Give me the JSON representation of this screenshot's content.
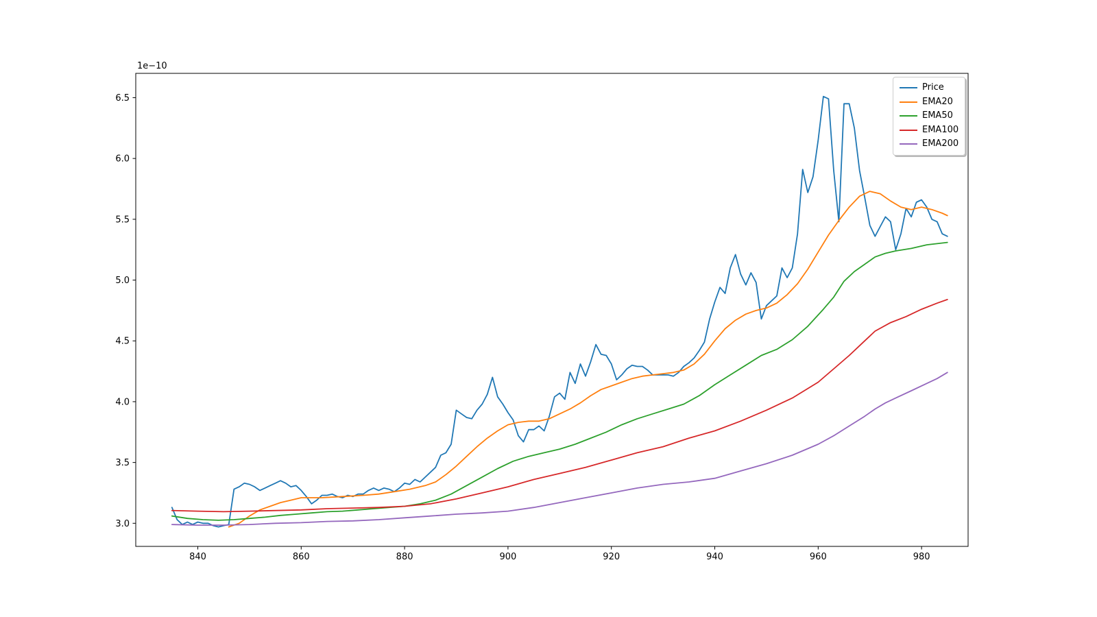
{
  "chart_data": {
    "type": "line",
    "title": "",
    "xlabel": "",
    "ylabel": "",
    "offset_label": "1e−10",
    "xlim": [
      828,
      989
    ],
    "ylim": [
      2.81,
      6.7
    ],
    "grid": false,
    "legend_position": "upper-right",
    "xticks": [
      {
        "v": 840,
        "label": "840"
      },
      {
        "v": 860,
        "label": "860"
      },
      {
        "v": 880,
        "label": "880"
      },
      {
        "v": 900,
        "label": "900"
      },
      {
        "v": 920,
        "label": "920"
      },
      {
        "v": 940,
        "label": "940"
      },
      {
        "v": 960,
        "label": "960"
      },
      {
        "v": 980,
        "label": "980"
      }
    ],
    "yticks": [
      {
        "v": 3.0,
        "label": "3.0"
      },
      {
        "v": 3.5,
        "label": "3.5"
      },
      {
        "v": 4.0,
        "label": "4.0"
      },
      {
        "v": 4.5,
        "label": "4.5"
      },
      {
        "v": 5.0,
        "label": "5.0"
      },
      {
        "v": 5.5,
        "label": "5.5"
      },
      {
        "v": 6.0,
        "label": "6.0"
      },
      {
        "v": 6.5,
        "label": "6.5"
      }
    ],
    "series": [
      {
        "name": "Price",
        "color": "#1f77b4",
        "x_start": 835,
        "x_step": 1,
        "y": [
          3.13,
          3.03,
          2.99,
          3.01,
          2.99,
          3.01,
          3.0,
          3.0,
          2.98,
          2.97,
          2.98,
          2.99,
          3.28,
          3.3,
          3.33,
          3.32,
          3.3,
          3.27,
          3.29,
          3.31,
          3.33,
          3.35,
          3.33,
          3.3,
          3.31,
          3.27,
          3.22,
          3.16,
          3.19,
          3.23,
          3.23,
          3.24,
          3.22,
          3.21,
          3.23,
          3.22,
          3.24,
          3.24,
          3.27,
          3.29,
          3.27,
          3.29,
          3.28,
          3.26,
          3.29,
          3.33,
          3.32,
          3.36,
          3.34,
          3.38,
          3.42,
          3.46,
          3.56,
          3.58,
          3.65,
          3.93,
          3.9,
          3.87,
          3.86,
          3.93,
          3.98,
          4.06,
          4.2,
          4.04,
          3.98,
          3.91,
          3.85,
          3.72,
          3.67,
          3.77,
          3.77,
          3.8,
          3.76,
          3.88,
          4.04,
          4.07,
          4.02,
          4.24,
          4.15,
          4.31,
          4.21,
          4.33,
          4.47,
          4.39,
          4.38,
          4.31,
          4.18,
          4.22,
          4.27,
          4.3,
          4.29,
          4.29,
          4.26,
          4.22,
          4.22,
          4.22,
          4.22,
          4.21,
          4.24,
          4.29,
          4.32,
          4.36,
          4.42,
          4.49,
          4.68,
          4.82,
          4.94,
          4.89,
          5.1,
          5.21,
          5.05,
          4.96,
          5.06,
          4.98,
          4.68,
          4.79,
          4.83,
          4.87,
          5.1,
          5.02,
          5.1,
          5.38,
          5.91,
          5.72,
          5.85,
          6.15,
          6.51,
          6.49,
          5.9,
          5.48,
          6.45,
          6.45,
          6.25,
          5.9,
          5.68,
          5.45,
          5.36,
          5.44,
          5.52,
          5.48,
          5.25,
          5.38,
          5.59,
          5.52,
          5.64,
          5.66,
          5.6,
          5.5,
          5.48,
          5.38,
          5.36
        ]
      },
      {
        "name": "EMA20",
        "color": "#ff7f0e",
        "points": [
          [
            846,
            2.97
          ],
          [
            848,
            3.0
          ],
          [
            850,
            3.06
          ],
          [
            852,
            3.11
          ],
          [
            854,
            3.14
          ],
          [
            856,
            3.17
          ],
          [
            858,
            3.19
          ],
          [
            860,
            3.21
          ],
          [
            864,
            3.21
          ],
          [
            868,
            3.22
          ],
          [
            872,
            3.23
          ],
          [
            875,
            3.24
          ],
          [
            878,
            3.26
          ],
          [
            881,
            3.28
          ],
          [
            884,
            3.31
          ],
          [
            886,
            3.34
          ],
          [
            888,
            3.4
          ],
          [
            890,
            3.47
          ],
          [
            892,
            3.55
          ],
          [
            894,
            3.63
          ],
          [
            896,
            3.7
          ],
          [
            898,
            3.76
          ],
          [
            900,
            3.81
          ],
          [
            902,
            3.83
          ],
          [
            904,
            3.84
          ],
          [
            906,
            3.84
          ],
          [
            908,
            3.86
          ],
          [
            910,
            3.9
          ],
          [
            912,
            3.94
          ],
          [
            914,
            3.99
          ],
          [
            916,
            4.05
          ],
          [
            918,
            4.1
          ],
          [
            920,
            4.13
          ],
          [
            922,
            4.16
          ],
          [
            924,
            4.19
          ],
          [
            926,
            4.21
          ],
          [
            928,
            4.22
          ],
          [
            930,
            4.23
          ],
          [
            932,
            4.24
          ],
          [
            934,
            4.26
          ],
          [
            936,
            4.31
          ],
          [
            938,
            4.39
          ],
          [
            940,
            4.5
          ],
          [
            942,
            4.6
          ],
          [
            944,
            4.67
          ],
          [
            946,
            4.72
          ],
          [
            948,
            4.75
          ],
          [
            950,
            4.77
          ],
          [
            952,
            4.81
          ],
          [
            954,
            4.88
          ],
          [
            956,
            4.97
          ],
          [
            958,
            5.09
          ],
          [
            960,
            5.23
          ],
          [
            962,
            5.37
          ],
          [
            964,
            5.49
          ],
          [
            966,
            5.6
          ],
          [
            968,
            5.69
          ],
          [
            970,
            5.73
          ],
          [
            972,
            5.71
          ],
          [
            974,
            5.65
          ],
          [
            976,
            5.6
          ],
          [
            978,
            5.58
          ],
          [
            980,
            5.6
          ],
          [
            982,
            5.58
          ],
          [
            984,
            5.55
          ],
          [
            985,
            5.53
          ]
        ]
      },
      {
        "name": "EMA50",
        "color": "#2ca02c",
        "points": [
          [
            835,
            3.06
          ],
          [
            838,
            3.04
          ],
          [
            841,
            3.03
          ],
          [
            844,
            3.025
          ],
          [
            847,
            3.03
          ],
          [
            850,
            3.04
          ],
          [
            853,
            3.05
          ],
          [
            856,
            3.065
          ],
          [
            859,
            3.075
          ],
          [
            862,
            3.085
          ],
          [
            865,
            3.095
          ],
          [
            868,
            3.1
          ],
          [
            871,
            3.11
          ],
          [
            874,
            3.12
          ],
          [
            877,
            3.13
          ],
          [
            880,
            3.14
          ],
          [
            883,
            3.16
          ],
          [
            886,
            3.19
          ],
          [
            889,
            3.24
          ],
          [
            892,
            3.31
          ],
          [
            895,
            3.38
          ],
          [
            898,
            3.45
          ],
          [
            901,
            3.51
          ],
          [
            904,
            3.55
          ],
          [
            907,
            3.58
          ],
          [
            910,
            3.61
          ],
          [
            913,
            3.65
          ],
          [
            916,
            3.7
          ],
          [
            919,
            3.75
          ],
          [
            922,
            3.81
          ],
          [
            925,
            3.86
          ],
          [
            928,
            3.9
          ],
          [
            931,
            3.94
          ],
          [
            934,
            3.98
          ],
          [
            937,
            4.05
          ],
          [
            940,
            4.14
          ],
          [
            943,
            4.22
          ],
          [
            946,
            4.3
          ],
          [
            949,
            4.38
          ],
          [
            952,
            4.43
          ],
          [
            955,
            4.51
          ],
          [
            958,
            4.62
          ],
          [
            961,
            4.76
          ],
          [
            963,
            4.86
          ],
          [
            965,
            4.99
          ],
          [
            967,
            5.07
          ],
          [
            969,
            5.13
          ],
          [
            971,
            5.19
          ],
          [
            973,
            5.22
          ],
          [
            975,
            5.24
          ],
          [
            978,
            5.26
          ],
          [
            981,
            5.29
          ],
          [
            985,
            5.31
          ]
        ]
      },
      {
        "name": "EMA100",
        "color": "#d62728",
        "points": [
          [
            835,
            3.105
          ],
          [
            840,
            3.1
          ],
          [
            845,
            3.095
          ],
          [
            850,
            3.1
          ],
          [
            855,
            3.105
          ],
          [
            860,
            3.11
          ],
          [
            865,
            3.12
          ],
          [
            870,
            3.125
          ],
          [
            875,
            3.13
          ],
          [
            880,
            3.14
          ],
          [
            885,
            3.16
          ],
          [
            890,
            3.2
          ],
          [
            895,
            3.25
          ],
          [
            900,
            3.3
          ],
          [
            905,
            3.36
          ],
          [
            910,
            3.41
          ],
          [
            915,
            3.46
          ],
          [
            920,
            3.52
          ],
          [
            925,
            3.58
          ],
          [
            930,
            3.63
          ],
          [
            935,
            3.7
          ],
          [
            940,
            3.76
          ],
          [
            945,
            3.84
          ],
          [
            950,
            3.93
          ],
          [
            955,
            4.03
          ],
          [
            960,
            4.16
          ],
          [
            963,
            4.27
          ],
          [
            966,
            4.38
          ],
          [
            969,
            4.5
          ],
          [
            971,
            4.58
          ],
          [
            974,
            4.65
          ],
          [
            977,
            4.7
          ],
          [
            980,
            4.76
          ],
          [
            983,
            4.81
          ],
          [
            985,
            4.84
          ]
        ]
      },
      {
        "name": "EMA200",
        "color": "#9467bd",
        "points": [
          [
            835,
            2.99
          ],
          [
            840,
            2.985
          ],
          [
            845,
            2.985
          ],
          [
            850,
            2.99
          ],
          [
            855,
            3.0
          ],
          [
            860,
            3.005
          ],
          [
            865,
            3.015
          ],
          [
            870,
            3.02
          ],
          [
            875,
            3.03
          ],
          [
            880,
            3.045
          ],
          [
            885,
            3.06
          ],
          [
            890,
            3.075
          ],
          [
            895,
            3.085
          ],
          [
            900,
            3.1
          ],
          [
            905,
            3.13
          ],
          [
            910,
            3.17
          ],
          [
            915,
            3.21
          ],
          [
            920,
            3.25
          ],
          [
            925,
            3.29
          ],
          [
            930,
            3.32
          ],
          [
            935,
            3.34
          ],
          [
            940,
            3.37
          ],
          [
            945,
            3.43
          ],
          [
            950,
            3.49
          ],
          [
            955,
            3.56
          ],
          [
            960,
            3.65
          ],
          [
            963,
            3.72
          ],
          [
            966,
            3.8
          ],
          [
            969,
            3.88
          ],
          [
            971,
            3.94
          ],
          [
            973,
            3.99
          ],
          [
            975,
            4.03
          ],
          [
            978,
            4.09
          ],
          [
            981,
            4.15
          ],
          [
            983,
            4.19
          ],
          [
            985,
            4.24
          ]
        ]
      }
    ]
  }
}
